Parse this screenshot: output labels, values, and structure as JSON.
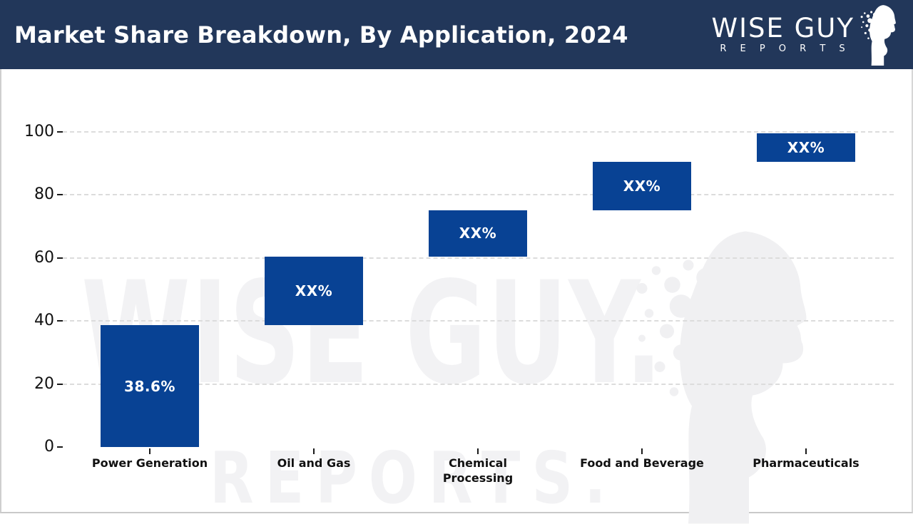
{
  "header": {
    "title": "Market Share Breakdown, By Application, 2024",
    "background": "#22375a",
    "logo": {
      "line1": "WISE GUY",
      "line2": "R E P O R T S"
    }
  },
  "watermark": {
    "line1": "WISE GUY.",
    "line2": "REPORTS."
  },
  "chart_data": {
    "type": "bar",
    "subtype": "waterfall",
    "title": "Market Share Breakdown, By Application, 2024",
    "categories": [
      "Power Generation",
      "Oil and Gas",
      "Chemical Processing",
      "Food and Beverage",
      "Pharmaceuticals"
    ],
    "category_label_lines": [
      [
        "Power Generation"
      ],
      [
        "Oil and Gas"
      ],
      [
        "Chemical",
        "Processing"
      ],
      [
        "Food and Beverage"
      ],
      [
        "Pharmaceuticals"
      ]
    ],
    "segments": [
      {
        "category": "Power Generation",
        "start": 0,
        "end": 38.6,
        "label": "38.6%"
      },
      {
        "category": "Oil and Gas",
        "start": 38.6,
        "end": 60.5,
        "label": "XX%"
      },
      {
        "category": "Chemical Processing",
        "start": 60.5,
        "end": 75.1,
        "label": "XX%"
      },
      {
        "category": "Food and Beverage",
        "start": 75.1,
        "end": 90.4,
        "label": "XX%"
      },
      {
        "category": "Pharmaceuticals",
        "start": 90.4,
        "end": 99.5,
        "label": "XX%"
      }
    ],
    "yticks": [
      0,
      20,
      40,
      60,
      80,
      100
    ],
    "ylim": [
      0,
      105
    ],
    "xlabel": "",
    "ylabel": "",
    "bar_color": "#084294",
    "grid": "horizontal-dashed",
    "legend": "none"
  }
}
